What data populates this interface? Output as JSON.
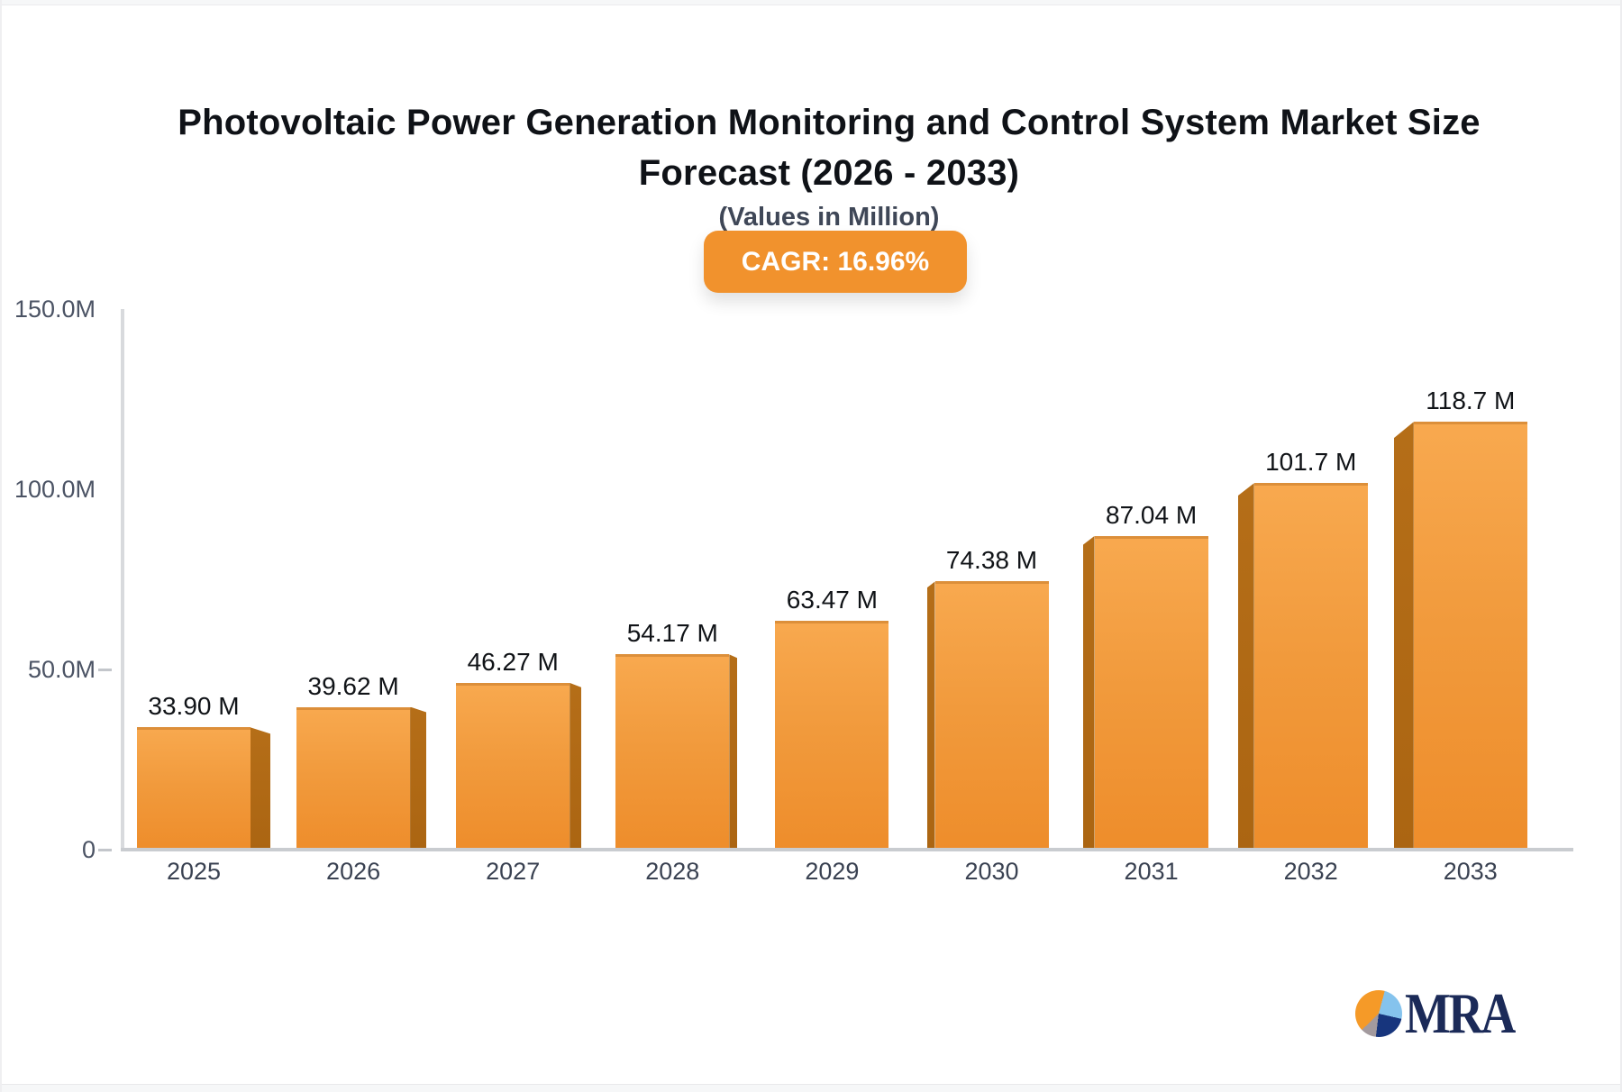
{
  "page": {
    "background": "#f6f7f8",
    "card_background": "#ffffff"
  },
  "header": {
    "title_line1": "Photovoltaic Power Generation Monitoring and Control System Market Size",
    "title_line2": "Forecast (2026 - 2033)",
    "subtitle": "(Values in Million)",
    "cagr_badge": "CAGR: 16.96%",
    "badge_color": "#f1922d"
  },
  "chart_data": {
    "type": "bar",
    "title": "Photovoltaic Power Generation Monitoring and Control System Market Size Forecast (2026 - 2033)",
    "subtitle": "(Values in Million)",
    "annotation": "CAGR: 16.96%",
    "categories": [
      "2025",
      "2026",
      "2027",
      "2028",
      "2029",
      "2030",
      "2031",
      "2032",
      "2033"
    ],
    "values": [
      33.9,
      39.62,
      46.27,
      54.17,
      63.47,
      74.38,
      87.04,
      101.7,
      118.7
    ],
    "value_labels": [
      "33.90 M",
      "39.62 M",
      "46.27 M",
      "54.17 M",
      "63.47 M",
      "74.38 M",
      "87.04 M",
      "101.7 M",
      "118.7 M"
    ],
    "unit": "Million",
    "ylim": [
      0,
      150
    ],
    "y_ticks": [
      {
        "label": "150.0M",
        "value": 150,
        "dash": false
      },
      {
        "label": "100.0M",
        "value": 100,
        "dash": false
      },
      {
        "label": "50.0M",
        "value": 50,
        "dash": true
      },
      {
        "label": "0",
        "value": 0,
        "dash": true
      }
    ],
    "grid": false,
    "legend": "none",
    "bar_color_top": "#f8a94f",
    "bar_color_bottom": "#ee8d2b",
    "bar_side_color": "#b26b15",
    "style": "3d-perspective-center"
  },
  "logo": {
    "text": "MRA",
    "text_color": "#1b2a58",
    "pie_icon_colors": {
      "orange": "#f59a28",
      "light_blue": "#85c3ed",
      "navy": "#17357d",
      "gray": "#a39a9e"
    }
  }
}
